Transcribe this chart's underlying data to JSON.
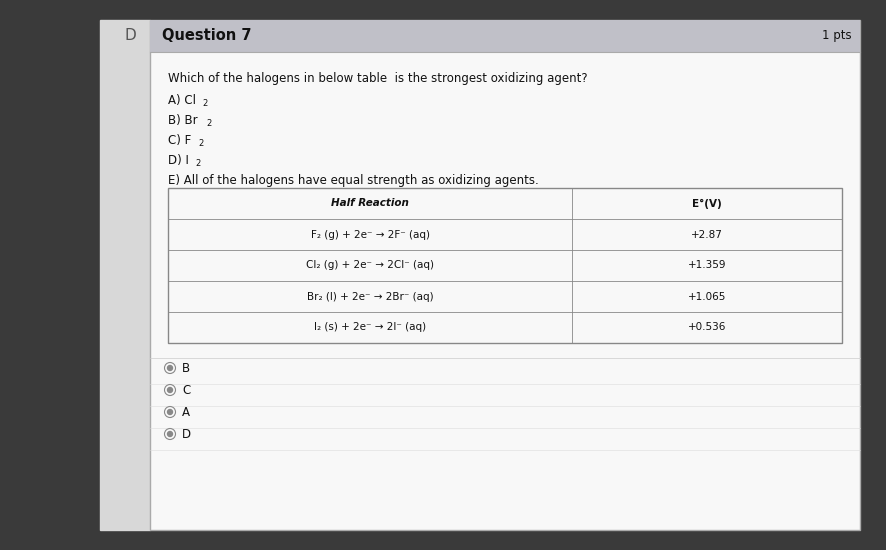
{
  "title": "Question 7",
  "pts": "1 pts",
  "question_text": "Which of the halogens in below table  is the strongest oxidizing agent?",
  "options_a": "A) Cl",
  "options_b": "B) Br",
  "options_c": "C) F",
  "options_d": "D) I",
  "options_e": "E) All of the halogens have equal strength as oxidizing agents.",
  "table_header_col1": "Half Reaction",
  "table_header_col2": "E°(V)",
  "table_rows": [
    [
      "F₂ (g) + 2e⁻ → 2F⁻ (aq)",
      "+2.87"
    ],
    [
      "Cl₂ (g) + 2e⁻ → 2Cl⁻ (aq)",
      "+1.359"
    ],
    [
      "Br₂ (l) + 2e⁻ → 2Br⁻ (aq)",
      "+1.065"
    ],
    [
      "I₂ (s) + 2e⁻ → 2I⁻ (aq)",
      "+0.536"
    ]
  ],
  "radio_options": [
    "B",
    "C",
    "A",
    "D"
  ],
  "outer_bg": "#3a3a3a",
  "left_panel_bg": "#d8d8d8",
  "card_bg": "#f0f0f0",
  "header_bg": "#c0c0c8",
  "white_bg": "#f8f8f8",
  "border_color": "#aaaaaa",
  "table_border": "#888888",
  "text_color": "#111111",
  "radio_color": "#888888",
  "title_fontsize": 10.5,
  "body_fontsize": 8.5,
  "table_fontsize": 7.5
}
